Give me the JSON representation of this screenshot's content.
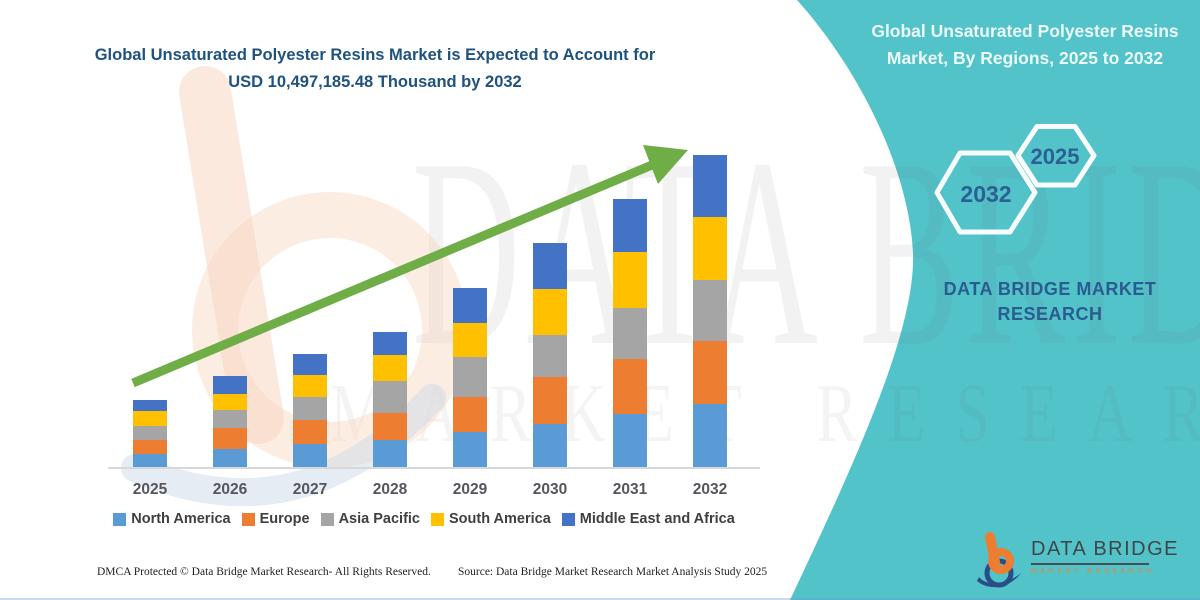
{
  "left_section": {
    "title_line1": "Global Unsaturated Polyester Resins Market is Expected to Account for",
    "title_line2": "USD 10,497,185.48 Thousand by 2032",
    "footer_left": "DMCA Protected © Data Bridge Market Research- All Rights Reserved.",
    "footer_right": "Source: Data Bridge Market Research Market Analysis Study 2025"
  },
  "right_panel": {
    "title": "Global Unsaturated Polyester Resins Market, By Regions, 2025 to 2032",
    "hexagon_back_label": "2032",
    "hexagon_front_label": "2025",
    "wordmark_line1": "DATA BRIDGE MARKET",
    "wordmark_line2": "RESEARCH",
    "panel_color": "#52C3C9",
    "title_color": "#ECF8F9",
    "hexagon_text_color": "#2D5F94"
  },
  "logo": {
    "name": "DATA BRIDGE",
    "subtitle": "MARKET RESEARCH",
    "orange": "#ED7D31",
    "navy": "#2B4D86"
  },
  "watermark": {
    "big_text": "DATA BRIDGE",
    "sub_text": "MARKET RESEARCH"
  },
  "chart_data": {
    "type": "bar",
    "stacked": true,
    "title": "Global Unsaturated Polyester Resins Market is Expected to Account for USD 10,497,185.48 Thousand by 2032",
    "unit": "USD Thousand (values estimated from bar heights; 2032 total labeled 10,497,185.48)",
    "categories": [
      "2025",
      "2026",
      "2027",
      "2028",
      "2029",
      "2030",
      "2031",
      "2032"
    ],
    "series": [
      {
        "name": "North America",
        "color": "#5B9BD5",
        "values": [
          437000,
          615000,
          783000,
          893000,
          1176000,
          1455000,
          1790000,
          2103000
        ]
      },
      {
        "name": "Europe",
        "color": "#ED7D31",
        "values": [
          480000,
          695000,
          783000,
          930000,
          1176000,
          1569000,
          1847000,
          2116000
        ]
      },
      {
        "name": "Asia Pacific",
        "color": "#A5A5A5",
        "values": [
          470000,
          591000,
          786000,
          1051000,
          1344000,
          1397000,
          1703000,
          2049000
        ]
      },
      {
        "name": "South America",
        "color": "#FFC000",
        "values": [
          480000,
          561000,
          726000,
          873000,
          1152000,
          1569000,
          1881000,
          2136000
        ]
      },
      {
        "name": "Middle East and Africa",
        "color": "#4472C4",
        "values": [
          393000,
          581000,
          719000,
          786000,
          1166000,
          1545000,
          1790000,
          2093000
        ]
      }
    ],
    "totals_estimated": [
      2260000,
      3043000,
      3797000,
      4533000,
      6014000,
      7535000,
      9011000,
      10497000
    ],
    "legend_position": "bottom",
    "x_axis_visible": true,
    "y_axis_visible": false,
    "grid": false,
    "annotations": [
      {
        "type": "trend-arrow",
        "direction": "up-right",
        "color": "#6FAD46"
      }
    ]
  }
}
